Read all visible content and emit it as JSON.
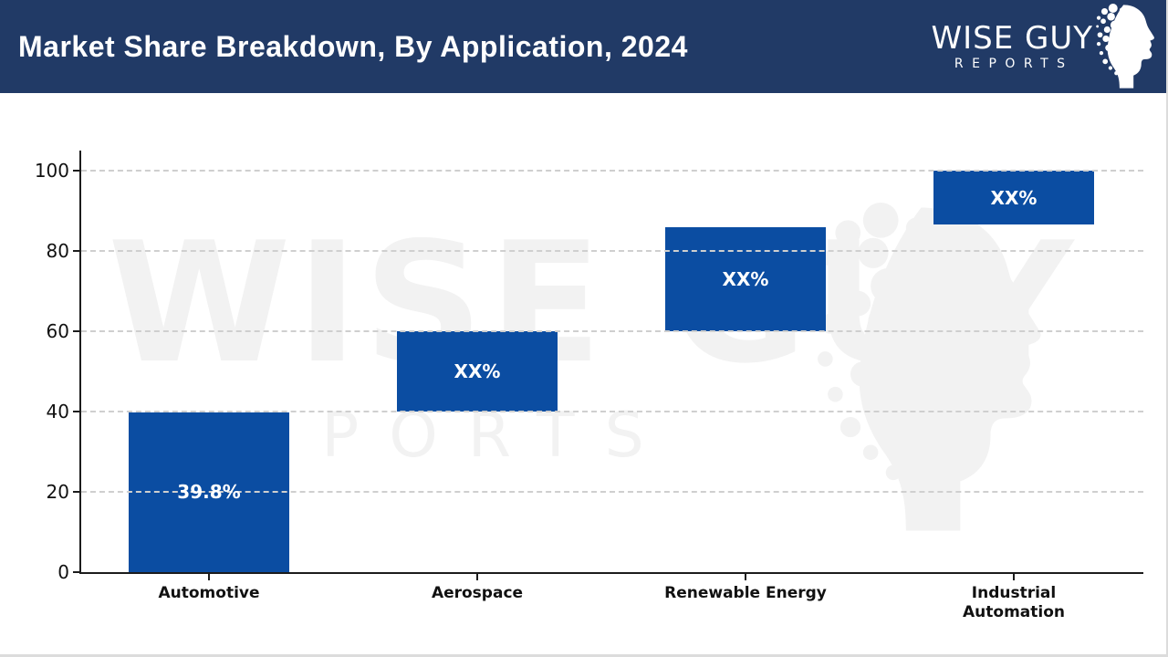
{
  "header": {
    "title": "Market Share Breakdown, By Application, 2024",
    "bg_color": "#213a66",
    "logo": {
      "line1": "WISE GUY",
      "line2": "REPORTS"
    }
  },
  "watermark": {
    "line1": "WISE GUY",
    "line2": "REPORTS"
  },
  "chart_data": {
    "type": "bar",
    "subtype": "waterfall",
    "title": "Market Share Breakdown, By Application, 2024",
    "categories": [
      "Automotive",
      "Aerospace",
      "Renewable Energy",
      "Industrial\nAutomation"
    ],
    "series": [
      {
        "name": "Market Share",
        "segments": [
          {
            "category": "Automotive",
            "start": 0,
            "end": 39.8,
            "label": "39.8%"
          },
          {
            "category": "Aerospace",
            "start": 40,
            "end": 60,
            "label": "XX%"
          },
          {
            "category": "Renewable Energy",
            "start": 60,
            "end": 86,
            "label": "XX%"
          },
          {
            "category": "Industrial Automation",
            "start": 86.5,
            "end": 100,
            "label": "XX%"
          }
        ]
      }
    ],
    "yticks": [
      0,
      20,
      40,
      60,
      80,
      100
    ],
    "ylim": [
      0,
      105
    ],
    "xlabel": "",
    "ylabel": "",
    "grid": "dashed-horizontal-above-bars",
    "legend": "none",
    "bar_color": "#0b4da2",
    "bar_label_color": "#ffffff",
    "axis_color": "#1c1c1c",
    "gridline_color": "#cfcfcf"
  }
}
